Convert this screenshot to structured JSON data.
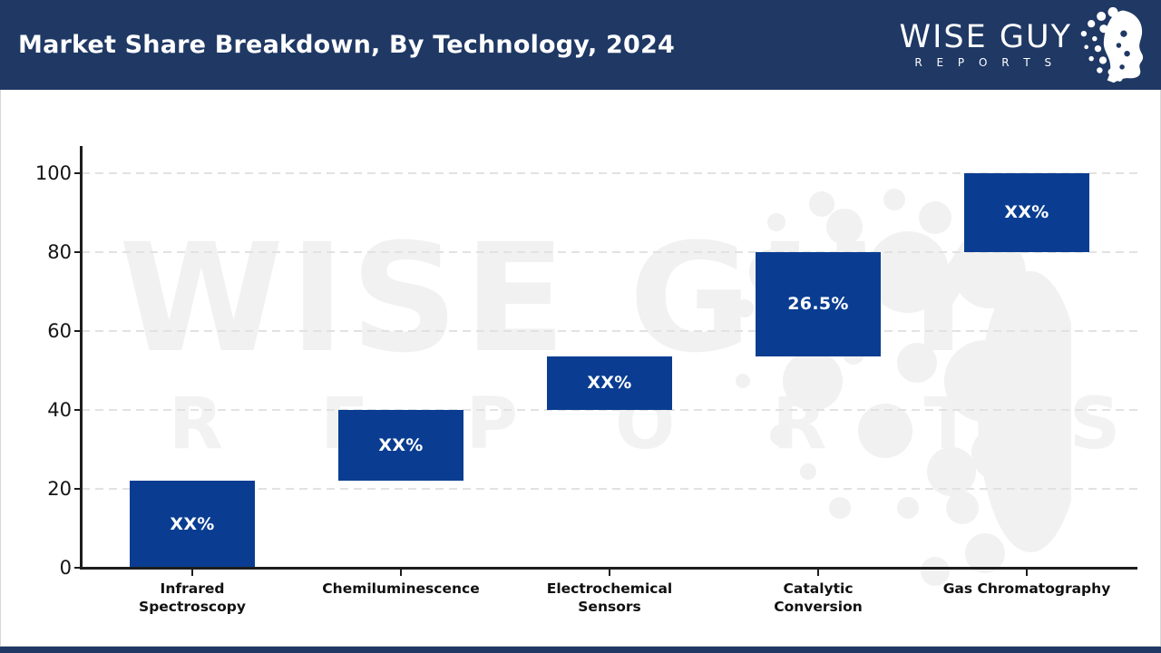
{
  "header": {
    "title": "Market Share Breakdown, By Technology, 2024"
  },
  "logo": {
    "line1": "WISE GUY",
    "line2": "R E P O R T S"
  },
  "watermark": {
    "line1": "WISE GUY",
    "line2": "R E P O R T S"
  },
  "colors": {
    "header_bg": "#1f3864",
    "footer_bg": "#1f3864",
    "bar": "#0a3d91",
    "bar_label": "#ffffff",
    "gridline": "#e2e2e3",
    "axis": "#1d1d1d",
    "watermark": "#f1f1f2"
  },
  "chart_data": {
    "type": "bar",
    "subtype": "waterfall",
    "title": "Market Share Breakdown, By Technology, 2024",
    "categories": [
      "Infrared Spectroscopy",
      "Chemiluminescence",
      "Electrochemical Sensors",
      "Catalytic Conversion",
      "Gas Chromatography"
    ],
    "category_lines": [
      [
        "Infrared",
        "Spectroscopy"
      ],
      [
        "Chemiluminescence"
      ],
      [
        "Electrochemical",
        "Sensors"
      ],
      [
        "Catalytic",
        "Conversion"
      ],
      [
        "Gas Chromatography"
      ]
    ],
    "segments": [
      {
        "category": "Infrared Spectroscopy",
        "start": 0,
        "end": 22,
        "label": "XX%"
      },
      {
        "category": "Chemiluminescence",
        "start": 22,
        "end": 40,
        "label": "XX%"
      },
      {
        "category": "Electrochemical Sensors",
        "start": 40,
        "end": 53.5,
        "label": "XX%"
      },
      {
        "category": "Catalytic Conversion",
        "start": 53.5,
        "end": 80,
        "label": "26.5%"
      },
      {
        "category": "Gas Chromatography",
        "start": 80,
        "end": 100,
        "label": "XX%"
      }
    ],
    "values": [
      22,
      18,
      13.5,
      26.5,
      20
    ],
    "xlabel": "",
    "ylabel": "",
    "ylim": [
      0,
      100
    ],
    "yticks": [
      0,
      20,
      40,
      60,
      80,
      100
    ],
    "grid": "dashed-horizontal",
    "legend": false
  }
}
